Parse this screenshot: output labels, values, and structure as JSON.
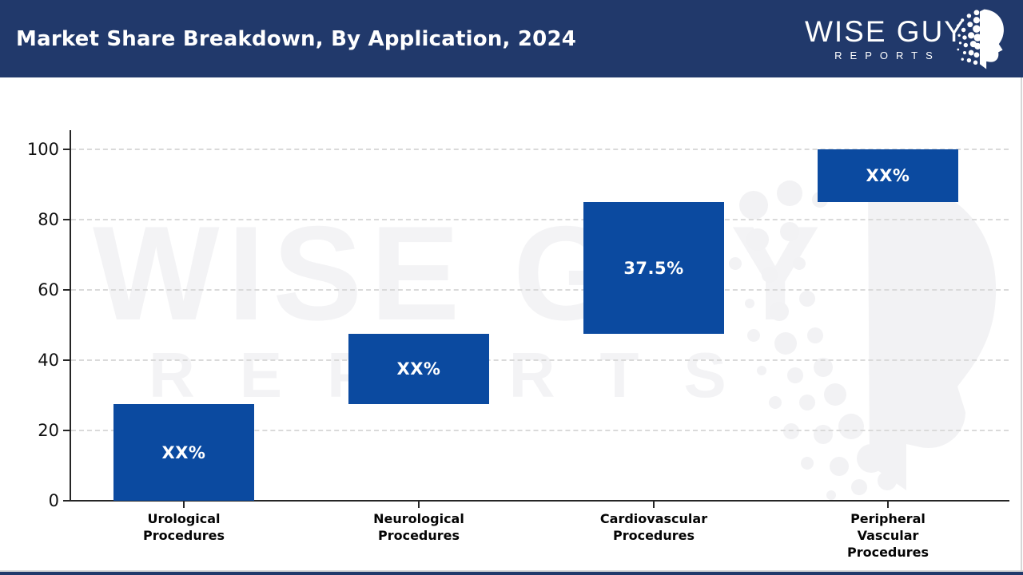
{
  "header": {
    "title": "Market Share Breakdown, By Application, 2024",
    "logo": {
      "line1": "WISE GUY",
      "line2": "REPORTS"
    }
  },
  "watermark": {
    "line1": "WISE GUY",
    "line2": "REPORTS"
  },
  "colors": {
    "header_bg": "#21396b",
    "footer_bg": "#21396b",
    "bar": "#0b4aa0",
    "bar_label_text": "#ffffff",
    "grid_line": "#dadada",
    "axis_line": "#262626",
    "watermark": "#f3f3f5"
  },
  "chart_data": {
    "type": "bar",
    "subtype": "floating-waterfall",
    "title": "Market Share Breakdown, By Application, 2024",
    "categories": [
      "Urological\nProcedures",
      "Neurological\nProcedures",
      "Cardiovascular\nProcedures",
      "Peripheral\nVascular\nProcedures"
    ],
    "segments": [
      {
        "category": "Urological Procedures",
        "start": 0,
        "end": 27.5,
        "label": "XX%"
      },
      {
        "category": "Neurological Procedures",
        "start": 27.5,
        "end": 47.5,
        "label": "XX%"
      },
      {
        "category": "Cardiovascular Procedures",
        "start": 47.5,
        "end": 85,
        "label": "37.5%"
      },
      {
        "category": "Peripheral Vascular Procedures",
        "start": 85,
        "end": 100,
        "label": "XX%"
      }
    ],
    "xlabel": "",
    "ylabel": "",
    "ylim": [
      0,
      100
    ],
    "yticks": [
      0,
      20,
      40,
      60,
      80,
      100
    ],
    "grid": "horizontal-dashed",
    "legend": "none"
  }
}
